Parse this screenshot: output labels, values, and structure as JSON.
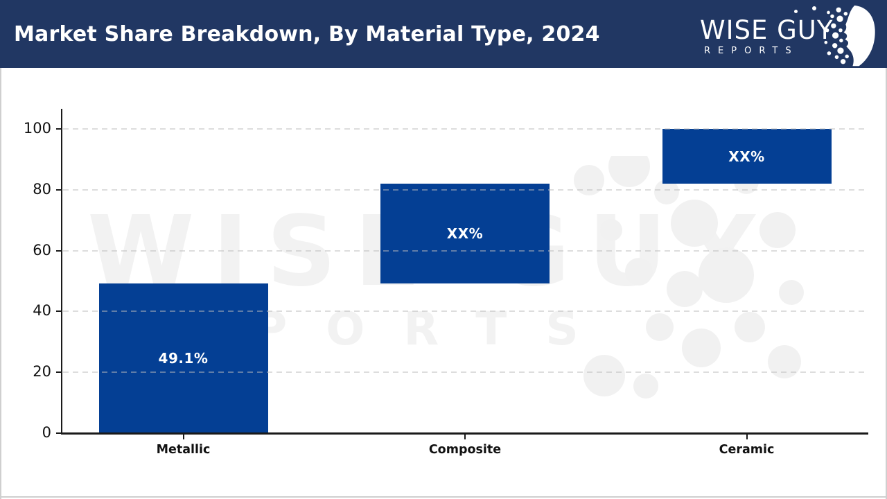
{
  "header": {
    "title": "Market Share Breakdown, By Material Type, 2024",
    "logo": {
      "line1": "WISE GUY",
      "line2": "REPORTS"
    }
  },
  "watermark": {
    "line1": "WISE GUY",
    "line2": "REPORTS"
  },
  "chart_data": {
    "type": "bar",
    "subtype": "waterfall-stacked",
    "title": "Market Share Breakdown, By Material Type, 2024",
    "categories": [
      "Metallic",
      "Composite",
      "Ceramic"
    ],
    "segments": [
      {
        "category": "Metallic",
        "start": 0,
        "end": 49.1,
        "label": "49.1%"
      },
      {
        "category": "Composite",
        "start": 49.1,
        "end": 81.9,
        "label": "XX%"
      },
      {
        "category": "Ceramic",
        "start": 81.9,
        "end": 100,
        "label": "XX%"
      }
    ],
    "bar_labels": [
      "49.1%",
      "XX%",
      "XX%"
    ],
    "yticks": [
      0,
      20,
      40,
      60,
      80,
      100
    ],
    "ylim": [
      0,
      106
    ],
    "xlabel": "",
    "ylabel": "",
    "grid": "dashed-horizontal",
    "legend": "none",
    "bar_color": "#043F94"
  },
  "colors": {
    "header_bg": "#213763",
    "bar": "#043F94",
    "axis": "#1a1a1a",
    "gridline": "#bbbbbb",
    "watermark": "#f2f2f2",
    "title_text": "#ffffff",
    "bar_label_text": "#ffffff"
  }
}
